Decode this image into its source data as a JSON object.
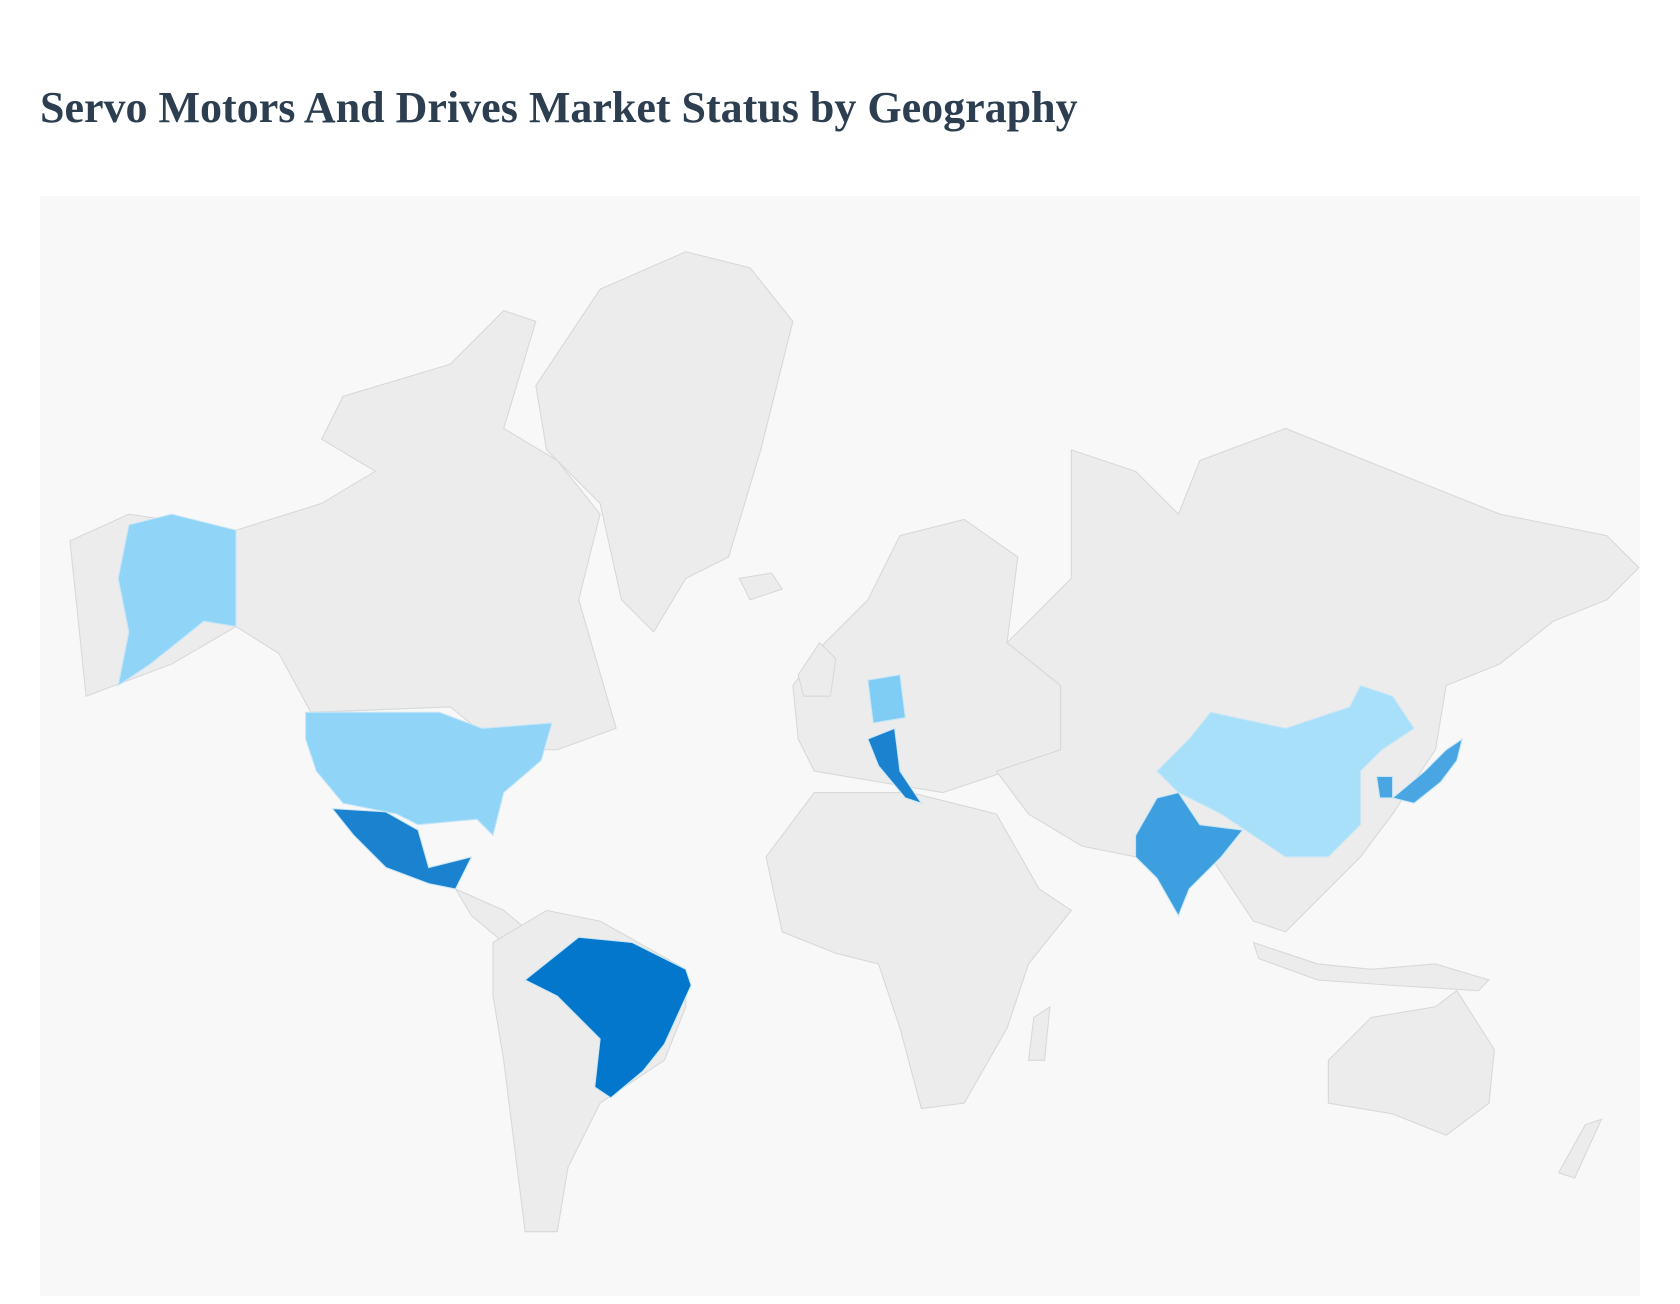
{
  "title": "Servo Motors And Drives Market Status by Geography"
}
